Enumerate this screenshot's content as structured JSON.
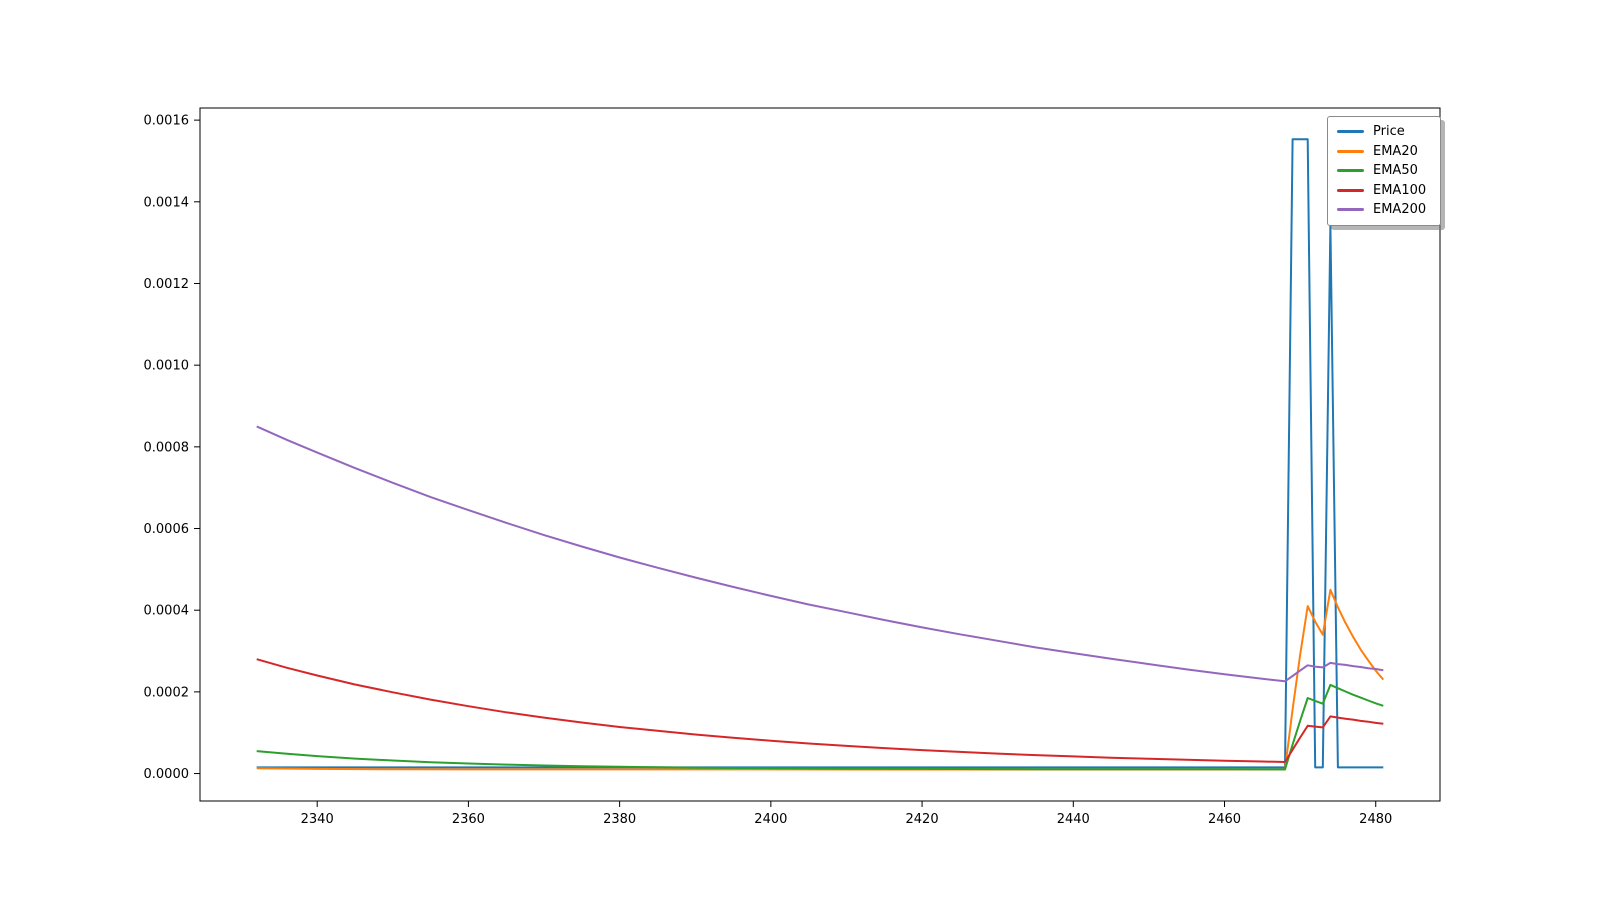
{
  "figure": {
    "background": "#ffffff",
    "axes": {
      "background": "#ffffff",
      "spine_color": "#000000",
      "tick_color": "#000000",
      "tick_label_color": "#000000"
    }
  },
  "legend": {
    "position": "upper-right",
    "background": "#ffffff",
    "border_color": "#8a8a8a",
    "entries": [
      "Price",
      "EMA20",
      "EMA50",
      "EMA100",
      "EMA200"
    ]
  },
  "chart_data": {
    "type": "line",
    "title": "",
    "xlabel": "",
    "ylabel": "",
    "grid": false,
    "legend_position": "upper-right",
    "xlim": [
      2324.5,
      2488.5
    ],
    "ylim": [
      -6.72e-05,
      0.0016297
    ],
    "xticks": {
      "values": [
        2340,
        2360,
        2380,
        2400,
        2420,
        2440,
        2460,
        2480
      ],
      "labels": [
        "2340",
        "2360",
        "2380",
        "2400",
        "2420",
        "2440",
        "2460",
        "2480"
      ]
    },
    "yticks": {
      "values": [
        0.0,
        0.0002,
        0.0004,
        0.0006,
        0.0008,
        0.001,
        0.0012,
        0.0014,
        0.0016
      ],
      "labels": [
        "0.0000",
        "0.0002",
        "0.0004",
        "0.0006",
        "0.0008",
        "0.0010",
        "0.0012",
        "0.0014",
        "0.0016"
      ]
    },
    "series": [
      {
        "name": "Price",
        "color": "#1f77b4",
        "points": [
          [
            2332,
            1.5e-05
          ],
          [
            2468,
            1.5e-05
          ],
          [
            2469,
            0.001553
          ],
          [
            2471,
            0.001553
          ],
          [
            2472,
            1.5e-05
          ],
          [
            2473,
            1.5e-05
          ],
          [
            2474,
            0.001343
          ],
          [
            2475,
            1.5e-05
          ],
          [
            2481,
            1.5e-05
          ]
        ]
      },
      {
        "name": "EMA20",
        "color": "#ff7f0e",
        "points": [
          [
            2332,
            1.3e-05
          ],
          [
            2340,
            1.13e-05
          ],
          [
            2350,
            1.04e-05
          ],
          [
            2360,
            1.01e-05
          ],
          [
            2468,
            1e-05
          ],
          [
            2469,
            0.000157
          ],
          [
            2470,
            0.00029
          ],
          [
            2471,
            0.00041
          ],
          [
            2472,
            0.000372
          ],
          [
            2473,
            0.00034
          ],
          [
            2474,
            0.00045
          ],
          [
            2475,
            0.000407
          ],
          [
            2476,
            0.000369
          ],
          [
            2477,
            0.000335
          ],
          [
            2478,
            0.000304
          ],
          [
            2479,
            0.000277
          ],
          [
            2480,
            0.000252
          ],
          [
            2481,
            0.00023
          ]
        ]
      },
      {
        "name": "EMA50",
        "color": "#2ca02c",
        "points": [
          [
            2332,
            5.5e-05
          ],
          [
            2336,
            4.84e-05
          ],
          [
            2340,
            4.27e-05
          ],
          [
            2345,
            3.67e-05
          ],
          [
            2350,
            3.19e-05
          ],
          [
            2355,
            2.79e-05
          ],
          [
            2360,
            2.47e-05
          ],
          [
            2365,
            2.2e-05
          ],
          [
            2370,
            1.98e-05
          ],
          [
            2375,
            1.81e-05
          ],
          [
            2380,
            1.66e-05
          ],
          [
            2385,
            1.54e-05
          ],
          [
            2390,
            1.44e-05
          ],
          [
            2395,
            1.36e-05
          ],
          [
            2400,
            1.3e-05
          ],
          [
            2405,
            1.24e-05
          ],
          [
            2410,
            1.2e-05
          ],
          [
            2415,
            1.16e-05
          ],
          [
            2420,
            1.13e-05
          ],
          [
            2425,
            1.11e-05
          ],
          [
            2430,
            1.09e-05
          ],
          [
            2435,
            1.07e-05
          ],
          [
            2440,
            1.06e-05
          ],
          [
            2445,
            1.05e-05
          ],
          [
            2450,
            1.04e-05
          ],
          [
            2455,
            1.03e-05
          ],
          [
            2460,
            1.03e-05
          ],
          [
            2465,
            1.02e-05
          ],
          [
            2468,
            1.02e-05
          ],
          [
            2469,
            7.08e-05
          ],
          [
            2470,
            0.000129
          ],
          [
            2471,
            0.000185
          ],
          [
            2472,
            0.000178
          ],
          [
            2473,
            0.000171
          ],
          [
            2474,
            0.000217
          ],
          [
            2475,
            0.000209
          ],
          [
            2476,
            0.000201
          ],
          [
            2477,
            0.000193
          ],
          [
            2478,
            0.000186
          ],
          [
            2479,
            0.000179
          ],
          [
            2480,
            0.000172
          ],
          [
            2481,
            0.000166
          ]
        ]
      },
      {
        "name": "EMA100",
        "color": "#d62728",
        "points": [
          [
            2332,
            0.00028
          ],
          [
            2336,
            0.000259
          ],
          [
            2340,
            0.00024
          ],
          [
            2345,
            0.000218
          ],
          [
            2350,
            0.000199
          ],
          [
            2355,
            0.000181
          ],
          [
            2360,
            0.000165
          ],
          [
            2365,
            0.00015
          ],
          [
            2370,
            0.000137
          ],
          [
            2375,
            0.000125
          ],
          [
            2380,
            0.000114
          ],
          [
            2385,
            0.000105
          ],
          [
            2390,
            9.57e-05
          ],
          [
            2395,
            8.77e-05
          ],
          [
            2400,
            8.04e-05
          ],
          [
            2405,
            7.37e-05
          ],
          [
            2410,
            6.78e-05
          ],
          [
            2415,
            6.23e-05
          ],
          [
            2420,
            5.74e-05
          ],
          [
            2425,
            5.3e-05
          ],
          [
            2430,
            4.89e-05
          ],
          [
            2435,
            4.53e-05
          ],
          [
            2440,
            4.19e-05
          ],
          [
            2445,
            3.89e-05
          ],
          [
            2450,
            3.62e-05
          ],
          [
            2455,
            3.38e-05
          ],
          [
            2460,
            3.15e-05
          ],
          [
            2465,
            2.95e-05
          ],
          [
            2468,
            2.84e-05
          ],
          [
            2469,
            5.85e-05
          ],
          [
            2470,
            8.8e-05
          ],
          [
            2471,
            0.000117
          ],
          [
            2472,
            0.000115
          ],
          [
            2473,
            0.000113
          ],
          [
            2474,
            0.00014
          ],
          [
            2475,
            0.000137
          ],
          [
            2476,
            0.000134
          ],
          [
            2477,
            0.000132
          ],
          [
            2478,
            0.000129
          ],
          [
            2479,
            0.000127
          ],
          [
            2480,
            0.000124
          ],
          [
            2481,
            0.000122
          ]
        ]
      },
      {
        "name": "EMA200",
        "color": "#9467bd",
        "points": [
          [
            2332,
            0.00085
          ],
          [
            2336,
            0.000817
          ],
          [
            2340,
            0.000786
          ],
          [
            2345,
            0.000748
          ],
          [
            2350,
            0.000712
          ],
          [
            2355,
            0.000677
          ],
          [
            2360,
            0.000645
          ],
          [
            2365,
            0.000614
          ],
          [
            2370,
            0.000584
          ],
          [
            2375,
            0.000556
          ],
          [
            2380,
            0.000529
          ],
          [
            2385,
            0.000504
          ],
          [
            2390,
            0.00048
          ],
          [
            2395,
            0.000457
          ],
          [
            2400,
            0.000435
          ],
          [
            2405,
            0.000414
          ],
          [
            2410,
            0.000395
          ],
          [
            2415,
            0.000376
          ],
          [
            2420,
            0.000358
          ],
          [
            2425,
            0.000341
          ],
          [
            2430,
            0.000325
          ],
          [
            2435,
            0.000309
          ],
          [
            2440,
            0.000295
          ],
          [
            2445,
            0.000281
          ],
          [
            2450,
            0.000268
          ],
          [
            2455,
            0.000255
          ],
          [
            2460,
            0.000243
          ],
          [
            2465,
            0.000232
          ],
          [
            2468,
            0.000226
          ],
          [
            2469,
            0.000239
          ],
          [
            2470,
            0.000252
          ],
          [
            2471,
            0.000265
          ],
          [
            2472,
            0.000262
          ],
          [
            2473,
            0.00026
          ],
          [
            2474,
            0.000271
          ],
          [
            2475,
            0.000268
          ],
          [
            2476,
            0.000266
          ],
          [
            2477,
            0.000263
          ],
          [
            2478,
            0.000261
          ],
          [
            2479,
            0.000258
          ],
          [
            2480,
            0.000256
          ],
          [
            2481,
            0.000253
          ]
        ]
      }
    ]
  }
}
